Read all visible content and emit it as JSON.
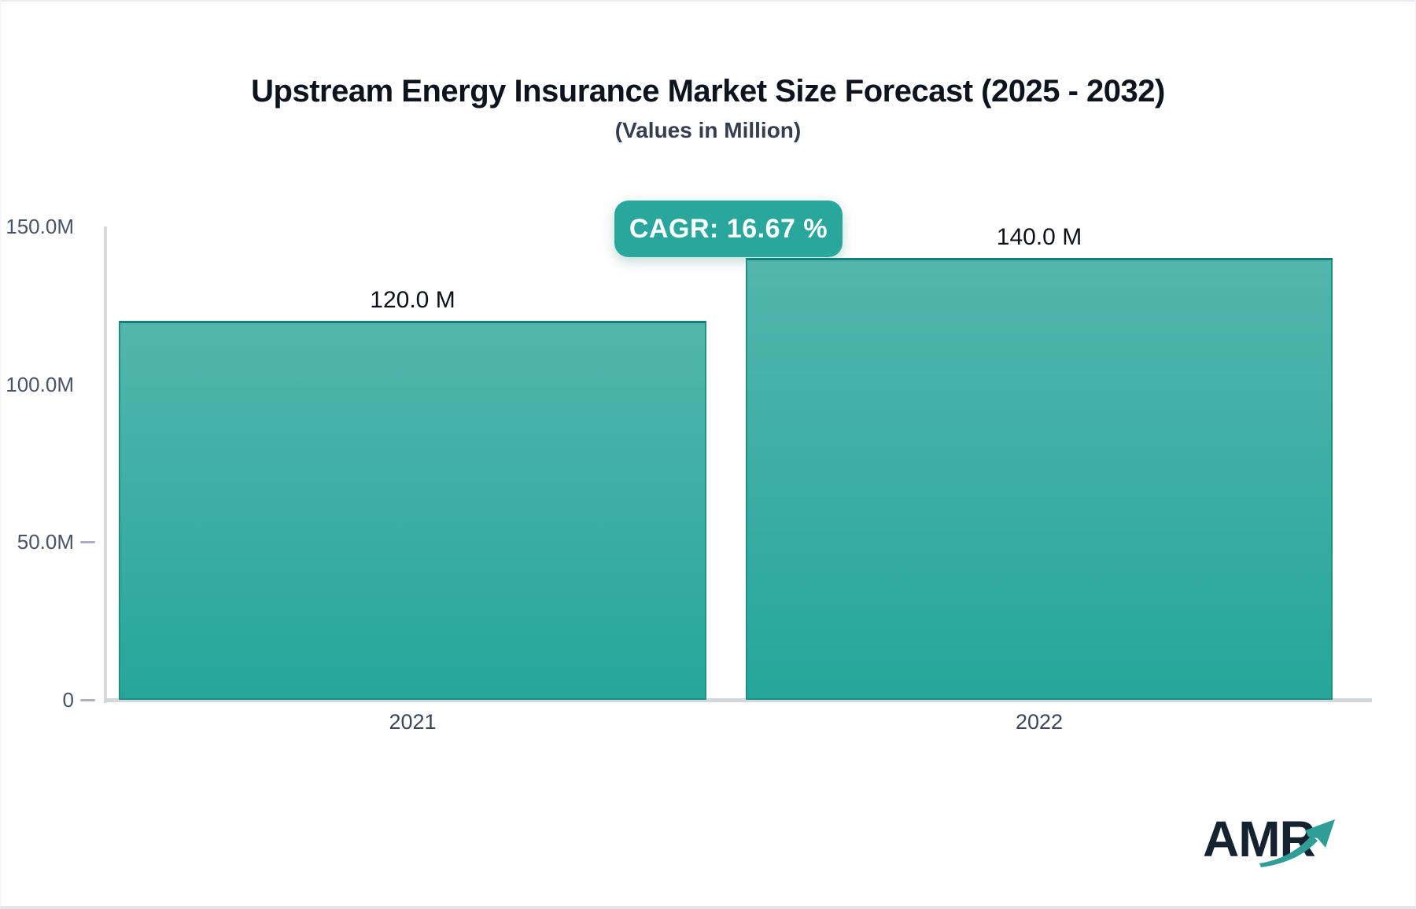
{
  "title": "Upstream Energy Insurance Market Size Forecast (2025 - 2032)",
  "subtitle": "(Values in Million)",
  "badge": {
    "label": "CAGR: 16.67 %"
  },
  "chart_data": {
    "type": "bar",
    "categories": [
      "2021",
      "2022"
    ],
    "values": [
      120.0,
      140.0
    ],
    "value_labels": [
      "120.0 M",
      "140.0 M"
    ],
    "title": "Upstream Energy Insurance Market Size Forecast (2025 - 2032)",
    "subtitle": "(Values in Million)",
    "xlabel": "",
    "ylabel": "",
    "ylim": [
      0,
      150
    ],
    "yticks": [
      {
        "label": "150.0M",
        "value": 150,
        "dash": false
      },
      {
        "label": "100.0M",
        "value": 100,
        "dash": false
      },
      {
        "label": "50.0M",
        "value": 50,
        "dash": true
      },
      {
        "label": "0",
        "value": 0,
        "dash": true
      }
    ],
    "grid": false,
    "legend": "none",
    "cagr": "16.67 %"
  },
  "colors": {
    "bar_gradient_top": "#52b6ac",
    "bar_gradient_bottom": "#26a69a",
    "bar_border": "#1f8f87",
    "badge_background": "#2aa79c",
    "badge_text": "#ffffff",
    "axis_line": "#d6d9dd"
  },
  "logo": {
    "text": "AMR",
    "arrow_icon": "trend-up-arrow"
  }
}
